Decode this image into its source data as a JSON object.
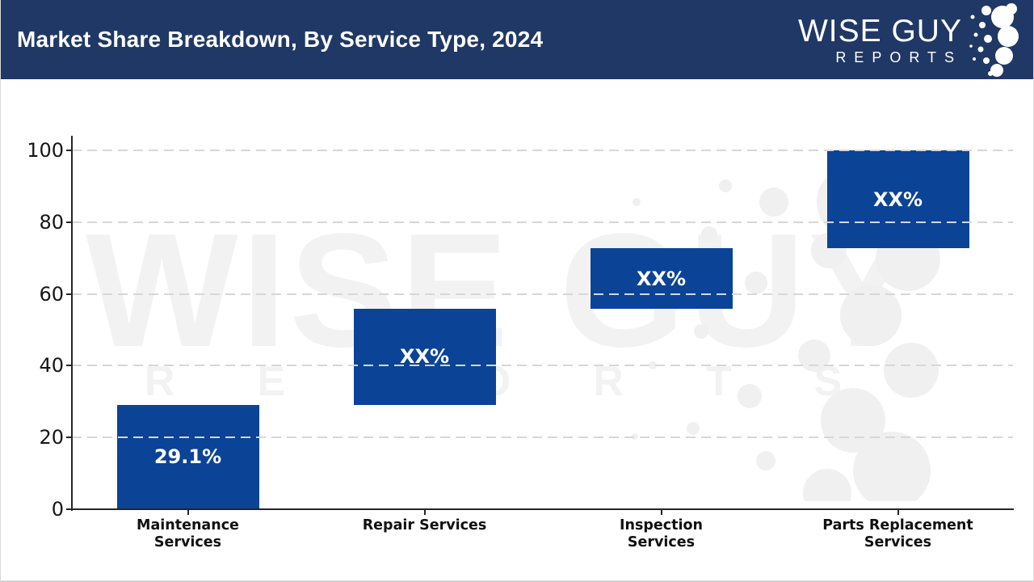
{
  "page": {
    "background": "#ffffff",
    "border_color": "#d9d9d9"
  },
  "header": {
    "background": "#203865",
    "title": "Market Share Breakdown, By Service Type, 2024",
    "logo": {
      "line1": "WISE GUY",
      "line2": "REPORTS",
      "face_icon": "dotted-head-profile"
    }
  },
  "watermark": {
    "line1": "WISE GUY",
    "line2": "REPORTS",
    "color": "#f2f2f2"
  },
  "chart_data": {
    "type": "bar",
    "variant": "waterfall",
    "title": "Market Share Breakdown, By Service Type, 2024",
    "xlabel": "",
    "ylabel": "",
    "ylim": [
      0,
      104
    ],
    "yticks": [
      0,
      20,
      40,
      60,
      80,
      100
    ],
    "grid": "horizontal-dashed",
    "gridline_color": "#d7d7d7",
    "legend": "none",
    "bar_color": "#0b4397",
    "value_label_color": "#ffffff",
    "categories": [
      "Maintenance\nServices",
      "Repair Services",
      "Inspection\nServices",
      "Parts Replacement\nServices"
    ],
    "bars": [
      {
        "category": "Maintenance Services",
        "value_label": "29.1%",
        "start": 0,
        "end": 29.1
      },
      {
        "category": "Repair Services",
        "value_label": "XX%",
        "start": 29.1,
        "end": 55.9
      },
      {
        "category": "Inspection Services",
        "value_label": "XX%",
        "start": 55.9,
        "end": 72.7
      },
      {
        "category": "Parts Replacement Services",
        "value_label": "XX%",
        "start": 72.7,
        "end": 100
      }
    ]
  }
}
